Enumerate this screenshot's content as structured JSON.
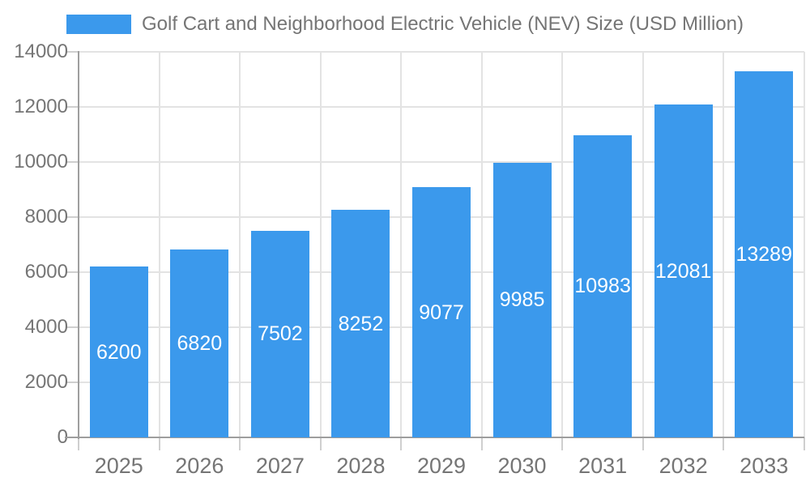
{
  "legend": {
    "label": "Golf Cart and Neighborhood Electric Vehicle (NEV) Size (USD Million)"
  },
  "colors": {
    "bar": "#3b99ec",
    "grid": "#e3e3e3",
    "axis": "#9e9e9e",
    "tick": "#cfcfcf",
    "label": "#757575",
    "value_label": "#ffffff",
    "background": "#ffffff"
  },
  "chart_data": {
    "type": "bar",
    "title": "Golf Cart and Neighborhood Electric Vehicle (NEV) Size (USD Million)",
    "series_name": "Golf Cart and Neighborhood Electric Vehicle (NEV) Size (USD Million)",
    "categories": [
      "2025",
      "2026",
      "2027",
      "2028",
      "2029",
      "2030",
      "2031",
      "2032",
      "2033"
    ],
    "values": [
      6200,
      6820,
      7502,
      8252,
      9077,
      9985,
      10983,
      12081,
      13289
    ],
    "xlabel": "",
    "ylabel": "",
    "ylim": [
      0,
      14000
    ],
    "yticks": [
      0,
      2000,
      4000,
      6000,
      8000,
      10000,
      12000,
      14000
    ],
    "grid": true,
    "legend_position": "top",
    "value_label_position": "inside-center"
  }
}
